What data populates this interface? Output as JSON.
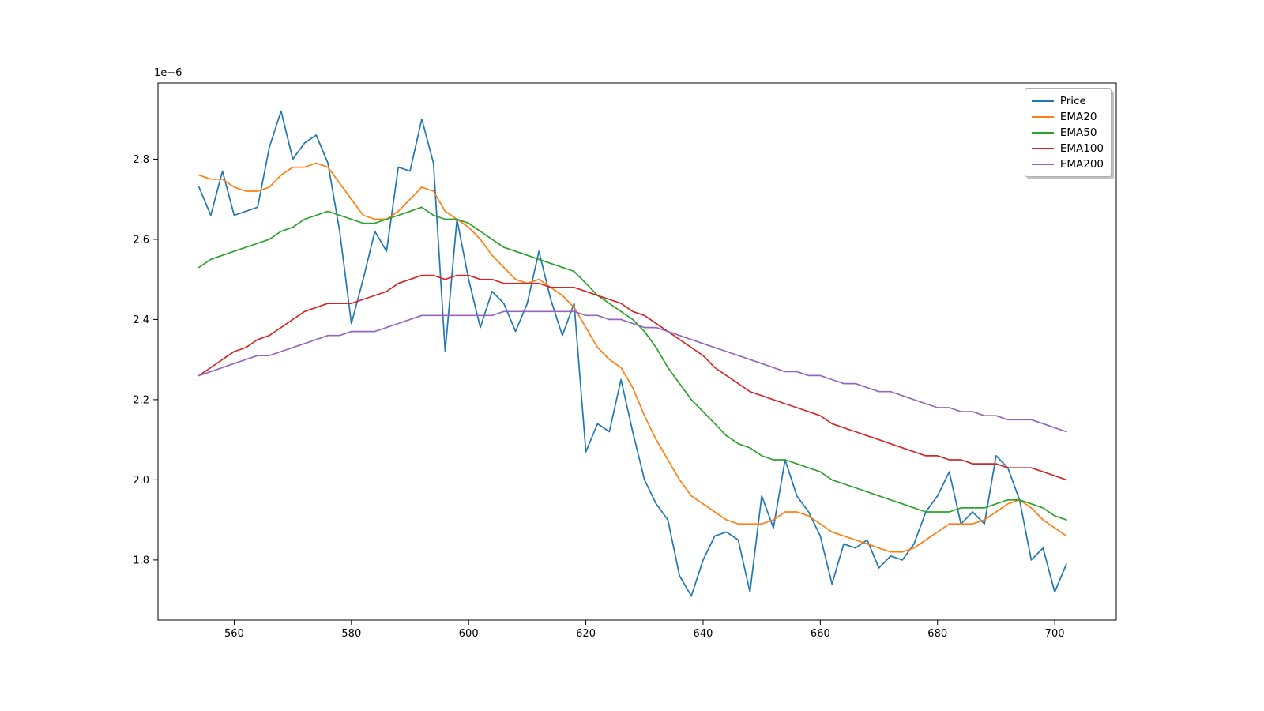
{
  "figure": {
    "background_color": "#ffffff",
    "axes_edge_color": "#000000",
    "offset_label": "1e−6"
  },
  "legend": {
    "position": "upper right",
    "border_color": "#b0b0b0"
  },
  "chart_data": {
    "type": "line",
    "title": "",
    "xlabel": "",
    "ylabel": "",
    "grid": false,
    "legend_position": "upper right",
    "y_offset_factor": "1e−6",
    "xlim": [
      547,
      710.5
    ],
    "ylim": [
      1.65,
      2.99
    ],
    "x_ticks": [
      560,
      580,
      600,
      620,
      640,
      660,
      680,
      700
    ],
    "x_tick_labels": [
      "560",
      "580",
      "600",
      "620",
      "640",
      "660",
      "680",
      "700"
    ],
    "y_ticks": [
      1.8,
      2.0,
      2.2,
      2.4,
      2.6,
      2.8
    ],
    "y_tick_labels": [
      "1.8",
      "2.0",
      "2.2",
      "2.4",
      "2.6",
      "2.8"
    ],
    "x": [
      554,
      556,
      558,
      560,
      562,
      564,
      566,
      568,
      570,
      572,
      574,
      576,
      578,
      580,
      582,
      584,
      586,
      588,
      590,
      592,
      594,
      596,
      598,
      600,
      602,
      604,
      606,
      608,
      610,
      612,
      614,
      616,
      618,
      620,
      622,
      624,
      626,
      628,
      630,
      632,
      634,
      636,
      638,
      640,
      642,
      644,
      646,
      648,
      650,
      652,
      654,
      656,
      658,
      660,
      662,
      664,
      666,
      668,
      670,
      672,
      674,
      676,
      678,
      680,
      682,
      684,
      686,
      688,
      690,
      692,
      694,
      696,
      698,
      700,
      702
    ],
    "series": [
      {
        "name": "Price",
        "color": "#1f77b4",
        "values": [
          2.73,
          2.66,
          2.77,
          2.66,
          2.67,
          2.68,
          2.83,
          2.92,
          2.8,
          2.84,
          2.86,
          2.79,
          2.62,
          2.39,
          2.5,
          2.62,
          2.57,
          2.78,
          2.77,
          2.9,
          2.79,
          2.32,
          2.65,
          2.5,
          2.38,
          2.47,
          2.44,
          2.37,
          2.44,
          2.57,
          2.45,
          2.36,
          2.44,
          2.07,
          2.14,
          2.12,
          2.25,
          2.12,
          2.0,
          1.94,
          1.9,
          1.76,
          1.71,
          1.8,
          1.86,
          1.87,
          1.85,
          1.72,
          1.96,
          1.88,
          2.05,
          1.96,
          1.92,
          1.86,
          1.74,
          1.84,
          1.83,
          1.85,
          1.78,
          1.81,
          1.8,
          1.84,
          1.92,
          1.96,
          2.02,
          1.89,
          1.92,
          1.89,
          2.06,
          2.03,
          1.95,
          1.8,
          1.83,
          1.72,
          1.79
        ]
      },
      {
        "name": "EMA20",
        "color": "#ff7f0e",
        "values": [
          2.76,
          2.75,
          2.75,
          2.73,
          2.72,
          2.72,
          2.73,
          2.76,
          2.78,
          2.78,
          2.79,
          2.78,
          2.74,
          2.7,
          2.66,
          2.65,
          2.65,
          2.67,
          2.7,
          2.73,
          2.72,
          2.67,
          2.65,
          2.63,
          2.6,
          2.56,
          2.53,
          2.5,
          2.49,
          2.5,
          2.48,
          2.46,
          2.43,
          2.38,
          2.33,
          2.3,
          2.28,
          2.23,
          2.16,
          2.1,
          2.05,
          2.0,
          1.96,
          1.94,
          1.92,
          1.9,
          1.89,
          1.89,
          1.89,
          1.9,
          1.92,
          1.92,
          1.91,
          1.89,
          1.87,
          1.86,
          1.85,
          1.84,
          1.83,
          1.82,
          1.82,
          1.83,
          1.85,
          1.87,
          1.89,
          1.89,
          1.89,
          1.9,
          1.92,
          1.94,
          1.95,
          1.93,
          1.9,
          1.88,
          1.86
        ]
      },
      {
        "name": "EMA50",
        "color": "#2ca02c",
        "values": [
          2.53,
          2.55,
          2.56,
          2.57,
          2.58,
          2.59,
          2.6,
          2.62,
          2.63,
          2.65,
          2.66,
          2.67,
          2.66,
          2.65,
          2.64,
          2.64,
          2.65,
          2.66,
          2.67,
          2.68,
          2.66,
          2.65,
          2.65,
          2.64,
          2.62,
          2.6,
          2.58,
          2.57,
          2.56,
          2.55,
          2.54,
          2.53,
          2.52,
          2.49,
          2.46,
          2.44,
          2.42,
          2.4,
          2.37,
          2.33,
          2.28,
          2.24,
          2.2,
          2.17,
          2.14,
          2.11,
          2.09,
          2.08,
          2.06,
          2.05,
          2.05,
          2.04,
          2.03,
          2.02,
          2.0,
          1.99,
          1.98,
          1.97,
          1.96,
          1.95,
          1.94,
          1.93,
          1.92,
          1.92,
          1.92,
          1.93,
          1.93,
          1.93,
          1.94,
          1.95,
          1.95,
          1.94,
          1.93,
          1.91,
          1.9
        ]
      },
      {
        "name": "EMA100",
        "color": "#d62728",
        "values": [
          2.26,
          2.28,
          2.3,
          2.32,
          2.33,
          2.35,
          2.36,
          2.38,
          2.4,
          2.42,
          2.43,
          2.44,
          2.44,
          2.44,
          2.45,
          2.46,
          2.47,
          2.49,
          2.5,
          2.51,
          2.51,
          2.5,
          2.51,
          2.51,
          2.5,
          2.5,
          2.49,
          2.49,
          2.49,
          2.49,
          2.48,
          2.48,
          2.48,
          2.47,
          2.46,
          2.45,
          2.44,
          2.42,
          2.41,
          2.39,
          2.37,
          2.35,
          2.33,
          2.31,
          2.28,
          2.26,
          2.24,
          2.22,
          2.21,
          2.2,
          2.19,
          2.18,
          2.17,
          2.16,
          2.14,
          2.13,
          2.12,
          2.11,
          2.1,
          2.09,
          2.08,
          2.07,
          2.06,
          2.06,
          2.05,
          2.05,
          2.04,
          2.04,
          2.04,
          2.03,
          2.03,
          2.03,
          2.02,
          2.01,
          2.0
        ]
      },
      {
        "name": "EMA200",
        "color": "#9467bd",
        "values": [
          2.26,
          2.27,
          2.28,
          2.29,
          2.3,
          2.31,
          2.31,
          2.32,
          2.33,
          2.34,
          2.35,
          2.36,
          2.36,
          2.37,
          2.37,
          2.37,
          2.38,
          2.39,
          2.4,
          2.41,
          2.41,
          2.41,
          2.41,
          2.41,
          2.41,
          2.41,
          2.42,
          2.42,
          2.42,
          2.42,
          2.42,
          2.42,
          2.42,
          2.41,
          2.41,
          2.4,
          2.4,
          2.39,
          2.38,
          2.38,
          2.37,
          2.36,
          2.35,
          2.34,
          2.33,
          2.32,
          2.31,
          2.3,
          2.29,
          2.28,
          2.27,
          2.27,
          2.26,
          2.26,
          2.25,
          2.24,
          2.24,
          2.23,
          2.22,
          2.22,
          2.21,
          2.2,
          2.19,
          2.18,
          2.18,
          2.17,
          2.17,
          2.16,
          2.16,
          2.15,
          2.15,
          2.15,
          2.14,
          2.13,
          2.12
        ]
      }
    ]
  }
}
